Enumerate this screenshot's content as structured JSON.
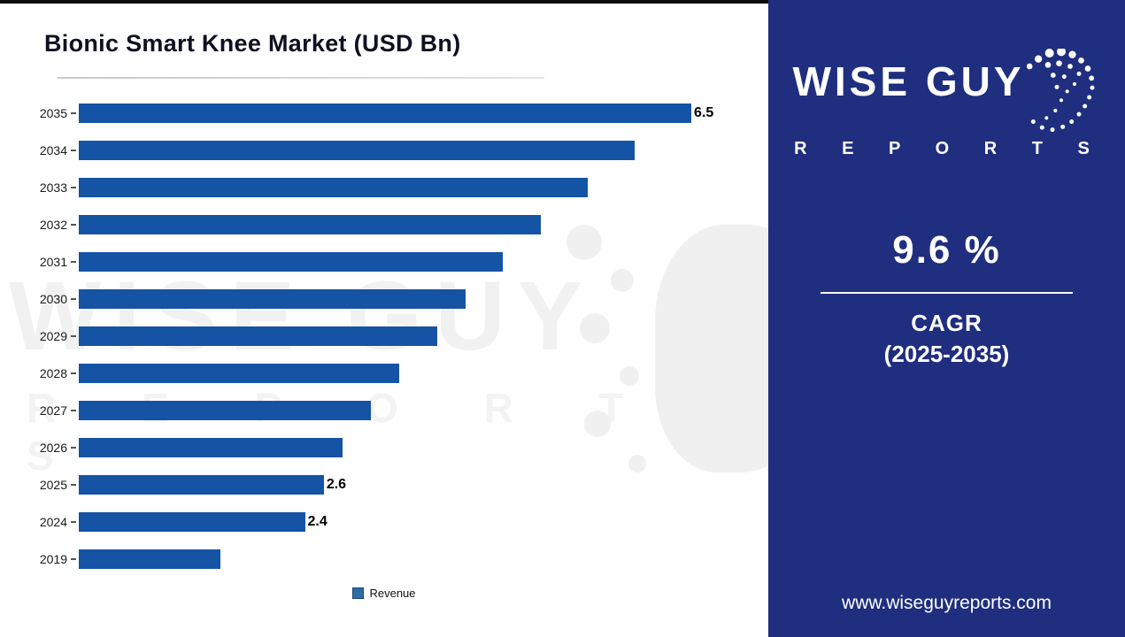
{
  "title": "Bionic Smart Knee Market (USD Bn)",
  "chart_data": {
    "type": "bar",
    "orientation": "horizontal",
    "title": "Bionic Smart Knee Market (USD Bn)",
    "categories": [
      "2035",
      "2034",
      "2033",
      "2032",
      "2031",
      "2030",
      "2029",
      "2028",
      "2027",
      "2026",
      "2025",
      "2024",
      "2019"
    ],
    "values": [
      6.5,
      5.9,
      5.4,
      4.9,
      4.5,
      4.1,
      3.8,
      3.4,
      3.1,
      2.8,
      2.6,
      2.4,
      1.5
    ],
    "value_labels": [
      "6.5",
      "",
      "",
      "",
      "",
      "",
      "",
      "",
      "",
      "",
      "2.6",
      "2.4",
      ""
    ],
    "xlim": [
      0,
      6.8
    ],
    "grid": false,
    "legend_position": "bottom",
    "legend": [
      "Revenue"
    ],
    "bar_color": "#1553a5"
  },
  "legend": {
    "label": "Revenue",
    "swatch_color": "#2e6ca4"
  },
  "side_panel": {
    "bg_color": "#1f2e7e",
    "logo_line1": "WISE GUY",
    "logo_line2": "REPORTS",
    "cagr_value": "9.6 %",
    "cagr_label_line1": "CAGR",
    "cagr_label_line2": "(2025-2035)",
    "website": "www.wiseguyreports.com"
  }
}
